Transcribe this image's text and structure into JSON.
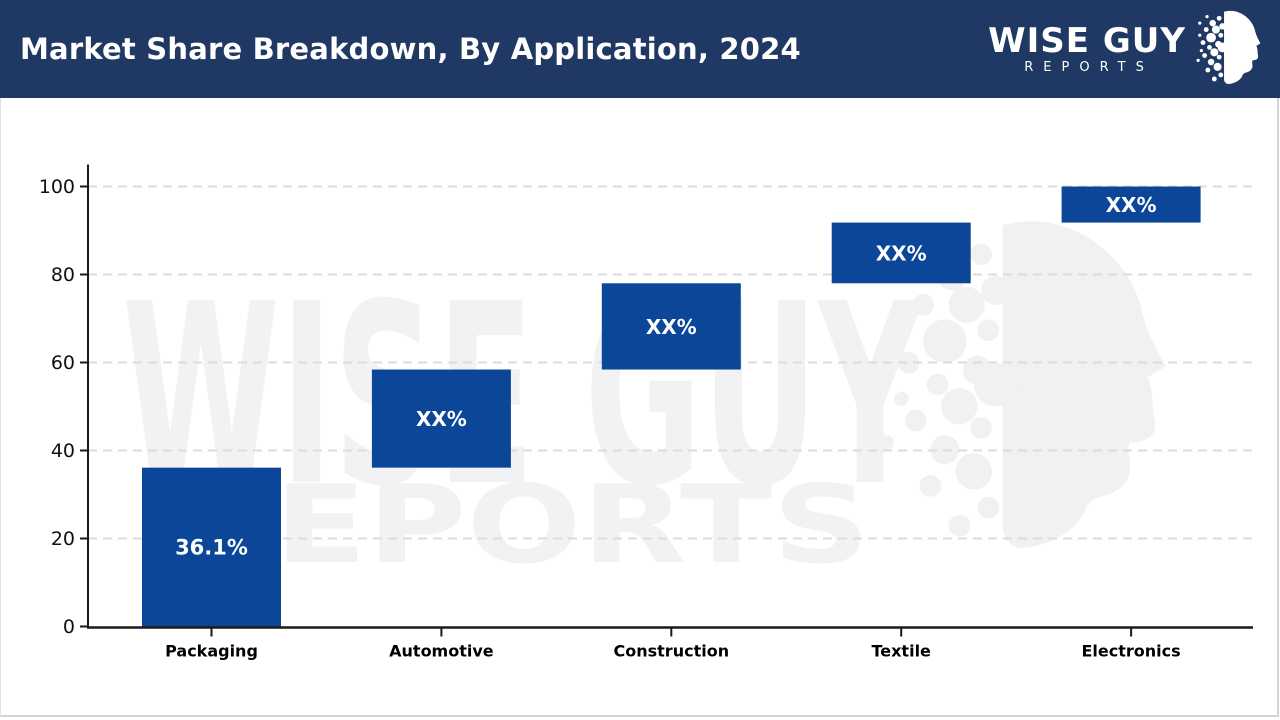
{
  "header": {
    "title": "Market Share Breakdown, By Application, 2024"
  },
  "logo": {
    "line1": "WISE GUY",
    "line2": "REPORTS"
  },
  "watermark": {
    "line1": "WISE GUY",
    "line2": "REPORTS"
  },
  "colors": {
    "header_bg": "#1f3864",
    "bar": "#0b4699",
    "bar_label": "#ffffff",
    "grid": "#dcdcdc",
    "axis": "#1a1a1a",
    "tick_label": "#111111",
    "category_label": "#000000",
    "watermark": "#f1f1f4"
  },
  "chart_data": {
    "type": "bar",
    "subtype": "cumulative-waterfall (floating segment bars)",
    "title": "Market Share Breakdown, By Application, 2024",
    "categories": [
      "Packaging",
      "Automotive",
      "Construction",
      "Textile",
      "Electronics"
    ],
    "segments": [
      {
        "category": "Packaging",
        "start": 0,
        "end": 36.1,
        "value": 36.1,
        "label": "36.1%"
      },
      {
        "category": "Automotive",
        "start": 36.1,
        "end": 58.4,
        "value": 22.3,
        "label": "XX%"
      },
      {
        "category": "Construction",
        "start": 58.4,
        "end": 78.0,
        "value": 19.6,
        "label": "XX%"
      },
      {
        "category": "Textile",
        "start": 78.0,
        "end": 91.8,
        "value": 13.8,
        "label": "XX%"
      },
      {
        "category": "Electronics",
        "start": 91.8,
        "end": 100.0,
        "value": 8.2,
        "label": "XX%"
      }
    ],
    "xlabel": "",
    "ylabel": "",
    "ylim": [
      0,
      105
    ],
    "yticks": [
      0,
      20,
      40,
      60,
      80,
      100
    ],
    "grid": "horizontal dashed",
    "legend": null,
    "unit": "%"
  }
}
